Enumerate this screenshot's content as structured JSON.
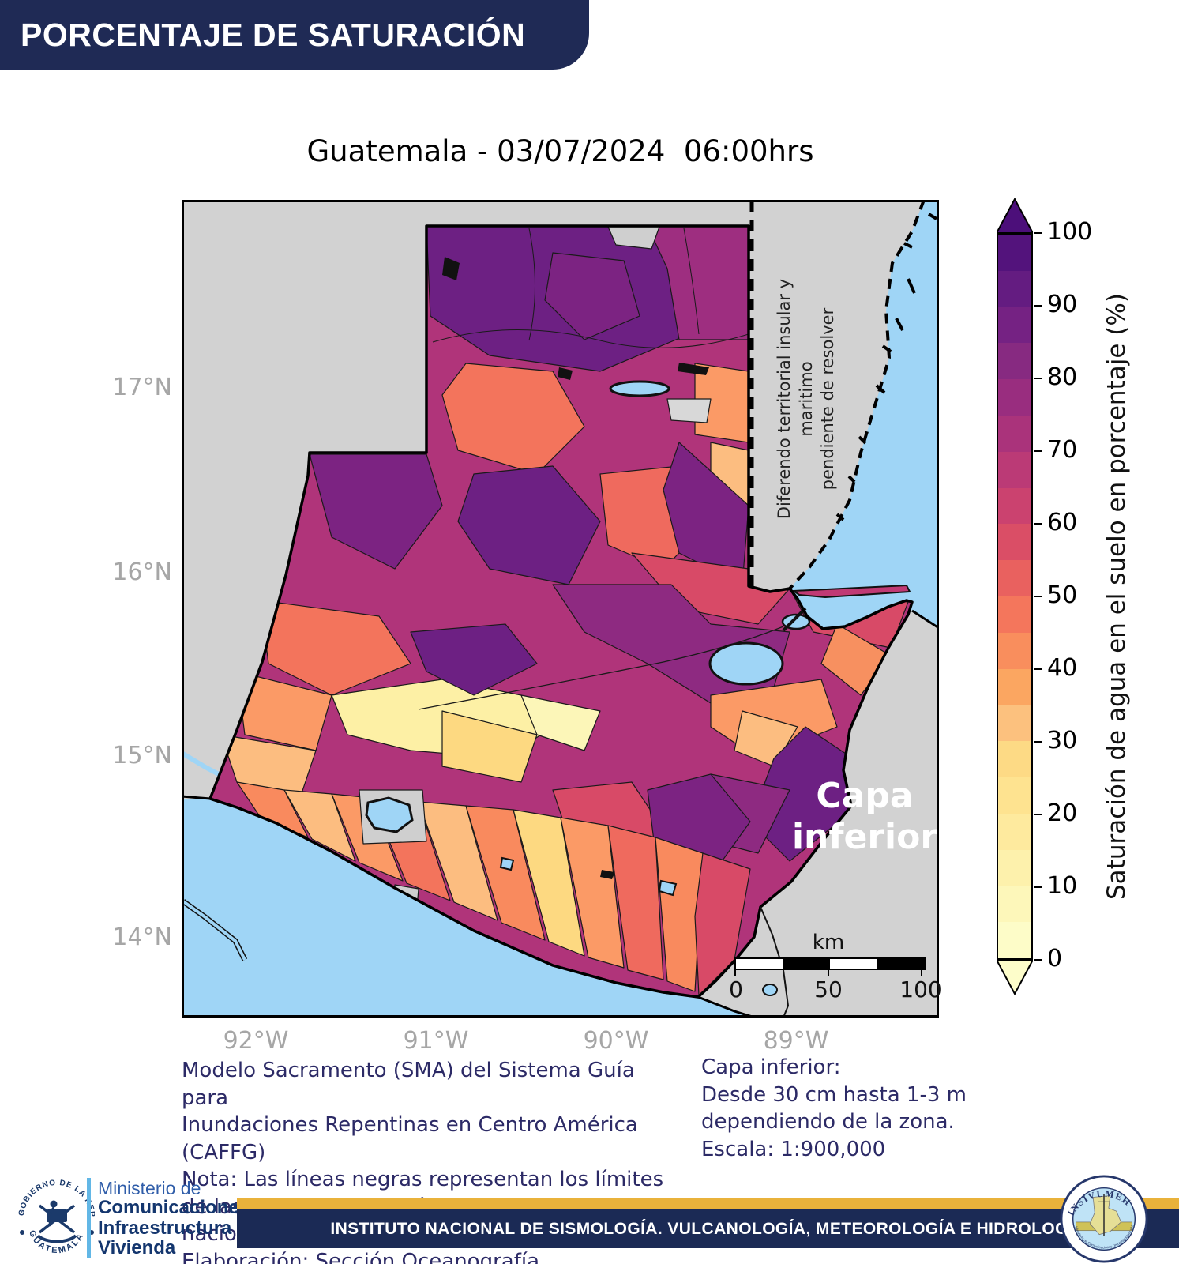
{
  "header": {
    "banner": "PORCENTAJE DE SATURACIÓN",
    "title": "Guatemala - 03/07/2024  06:00hrs"
  },
  "map": {
    "lat_ticks": [
      "17°N",
      "16°N",
      "15°N",
      "14°N"
    ],
    "lon_ticks": [
      "92°W",
      "91°W",
      "90°W",
      "89°W"
    ],
    "belize_note": [
      "Diferendo territorial insular y maritimo",
      "pendiente de resolver"
    ],
    "layer_label": "Capa inferior",
    "scalebar": {
      "unit": "km",
      "ticks": [
        "0",
        "50",
        "100"
      ]
    }
  },
  "colorbar": {
    "title": "Saturación de agua en el suelo en porcentaje (%)",
    "ticks": [
      "0",
      "10",
      "20",
      "30",
      "40",
      "50",
      "60",
      "70",
      "80",
      "90",
      "100"
    ],
    "colors": [
      "#fdfcc8",
      "#fdf7ba",
      "#fdf1ac",
      "#feea9e",
      "#fee390",
      "#fdda85",
      "#fcc17e",
      "#fba661",
      "#f98e5d",
      "#f4765c",
      "#e9615f",
      "#da4e66",
      "#cb426f",
      "#bb3a76",
      "#aa337b",
      "#992d7f",
      "#872a81",
      "#752283",
      "#641c81",
      "#53137c"
    ],
    "arrow_top_color": "#4c0f7a",
    "arrow_bottom_color": "#fdfdca"
  },
  "notes": {
    "left": [
      "Modelo Sacramento (SMA) del Sistema Guía para",
      "Inundaciones Repentinas en Centro América (CAFFG)",
      "Nota: Las líneas negras representan los límites",
      "de las cuencas hidrográficas del territorio nacional",
      "Elaboración: Sección Oceanografía"
    ],
    "right": [
      "Capa inferior:",
      "Desde 30 cm hasta 1-3 m",
      "dependiendo de la zona.",
      "Escala: 1:900,000"
    ]
  },
  "footer": {
    "seal_top": "GOBIERNO DE LA REPÚBLICA",
    "seal_bottom": "GUATEMALA",
    "ministry": [
      "Ministerio de",
      "Comunicaciones,",
      "Infraestructura y",
      "Vivienda"
    ],
    "institute": "INSTITUTO NACIONAL DE SISMOLOGÍA. VULCANOLOGÍA, METEOROLOGÍA E HIDROLOGÍA",
    "logo_name": "INSIVUMEH",
    "logo_sub": "Ministerio de Comunicaciones, Infraestructura y Vivienda"
  },
  "colors": {
    "banner_navy": "#1f2a55",
    "band_gold": "#e9b23b",
    "ocean": "#9fd5f6",
    "land_gray": "#d2d2d2",
    "note_navy": "#2c2a66"
  }
}
